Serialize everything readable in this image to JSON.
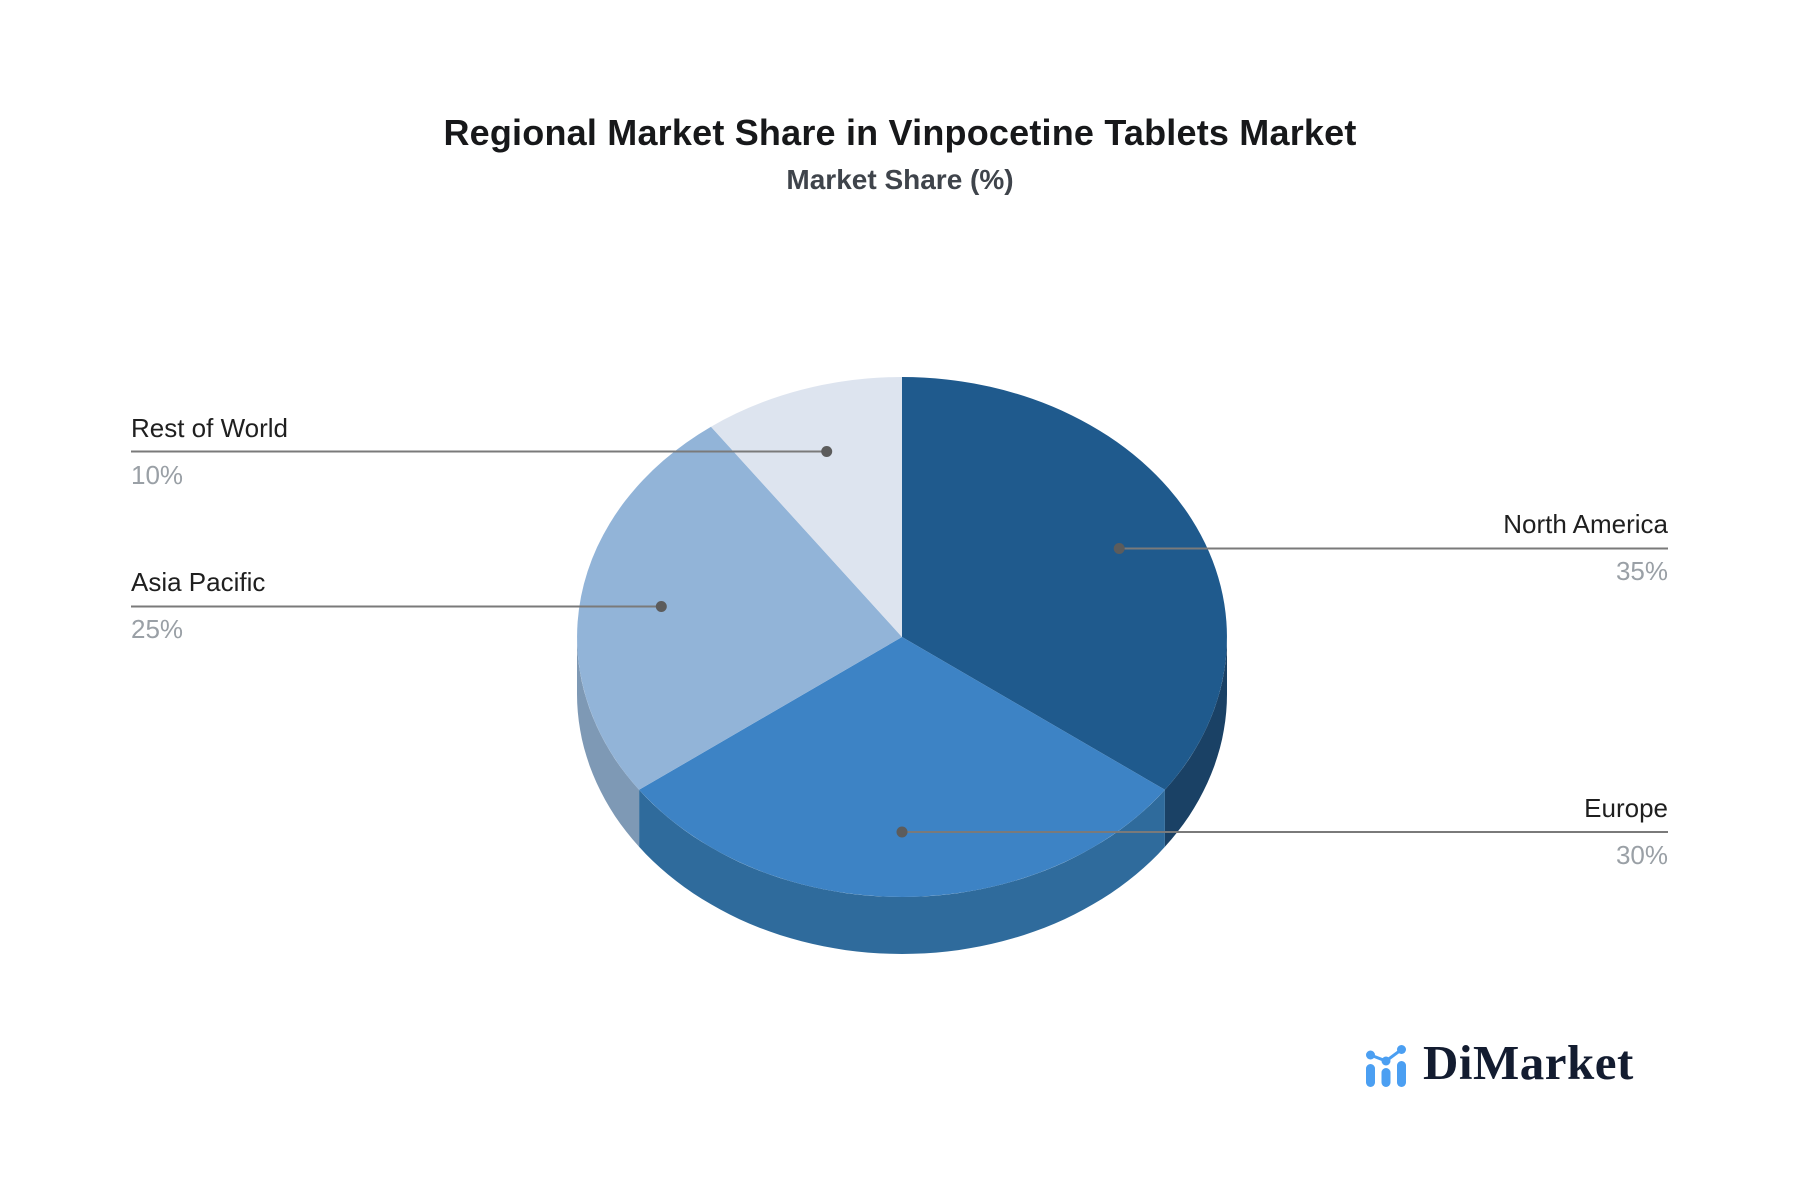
{
  "page": {
    "background": "#ffffff"
  },
  "chart_data": {
    "type": "pie",
    "style": "3d",
    "title": "Regional Market Share in Vinpocetine Tablets Market",
    "subtitle": "Market Share (%)",
    "unit": "%",
    "start_angle_deg": 0,
    "direction": "clockwise",
    "legend": "none",
    "grid": "off",
    "slices": [
      {
        "label": "North America",
        "value": 35,
        "color": "#1f5a8d",
        "side_color": "#1a4165",
        "label_side": "right"
      },
      {
        "label": "Europe",
        "value": 30,
        "color": "#3d83c5",
        "side_color": "#2f6b9c",
        "label_side": "right"
      },
      {
        "label": "Asia Pacific",
        "value": 25,
        "color": "#92b4d8",
        "side_color": "#7e99b5",
        "label_side": "left"
      },
      {
        "label": "Rest of World",
        "value": 10,
        "color": "#dde4ef",
        "side_color": "#c3cfe0",
        "label_side": "left"
      }
    ],
    "leader_line_color": "#7a7a7a",
    "leader_dot_color": "#5c5c5c",
    "label_color": "#1f1f1f",
    "value_color": "#9aa0a6"
  },
  "branding": {
    "name": "DiMarket",
    "icon": "bar-chart-trend-icon",
    "icon_color": "#4b9ff2",
    "text_color": "#131c30"
  }
}
